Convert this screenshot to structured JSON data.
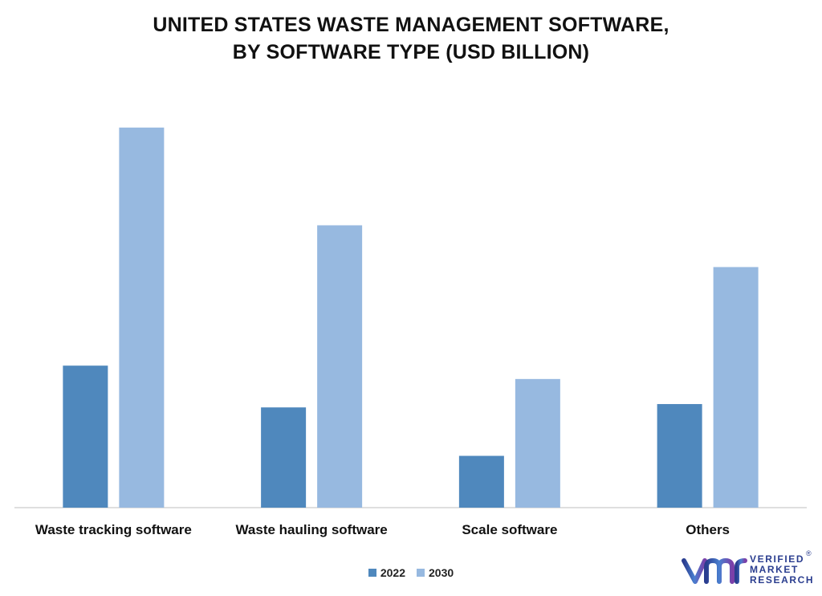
{
  "title_lines": [
    "UNITED STATES WASTE MANAGEMENT SOFTWARE,",
    "BY SOFTWARE TYPE (USD BILLION)"
  ],
  "legend": [
    {
      "label": "2022",
      "color": "#4f88bd"
    },
    {
      "label": "2030",
      "color": "#97b9e0"
    }
  ],
  "logo": {
    "icon": "vmr-logo-icon",
    "lines": [
      "VERIFIED",
      "MARKET",
      "RESEARCH"
    ],
    "registered_mark": "®"
  },
  "chart_data": {
    "type": "bar",
    "title": "UNITED STATES WASTE MANAGEMENT SOFTWARE, BY SOFTWARE TYPE (USD BILLION)",
    "categories": [
      "Waste tracking software",
      "Waste hauling software",
      "Scale software",
      "Others"
    ],
    "series": [
      {
        "name": "2022",
        "color": "#4f88bd",
        "values": [
          1.7,
          1.2,
          0.62,
          1.24
        ]
      },
      {
        "name": "2030",
        "color": "#97b9e0",
        "values": [
          4.55,
          3.38,
          1.54,
          2.88
        ]
      }
    ],
    "ylim": [
      0,
      5
    ],
    "grid": false,
    "legend_position": "bottom"
  }
}
